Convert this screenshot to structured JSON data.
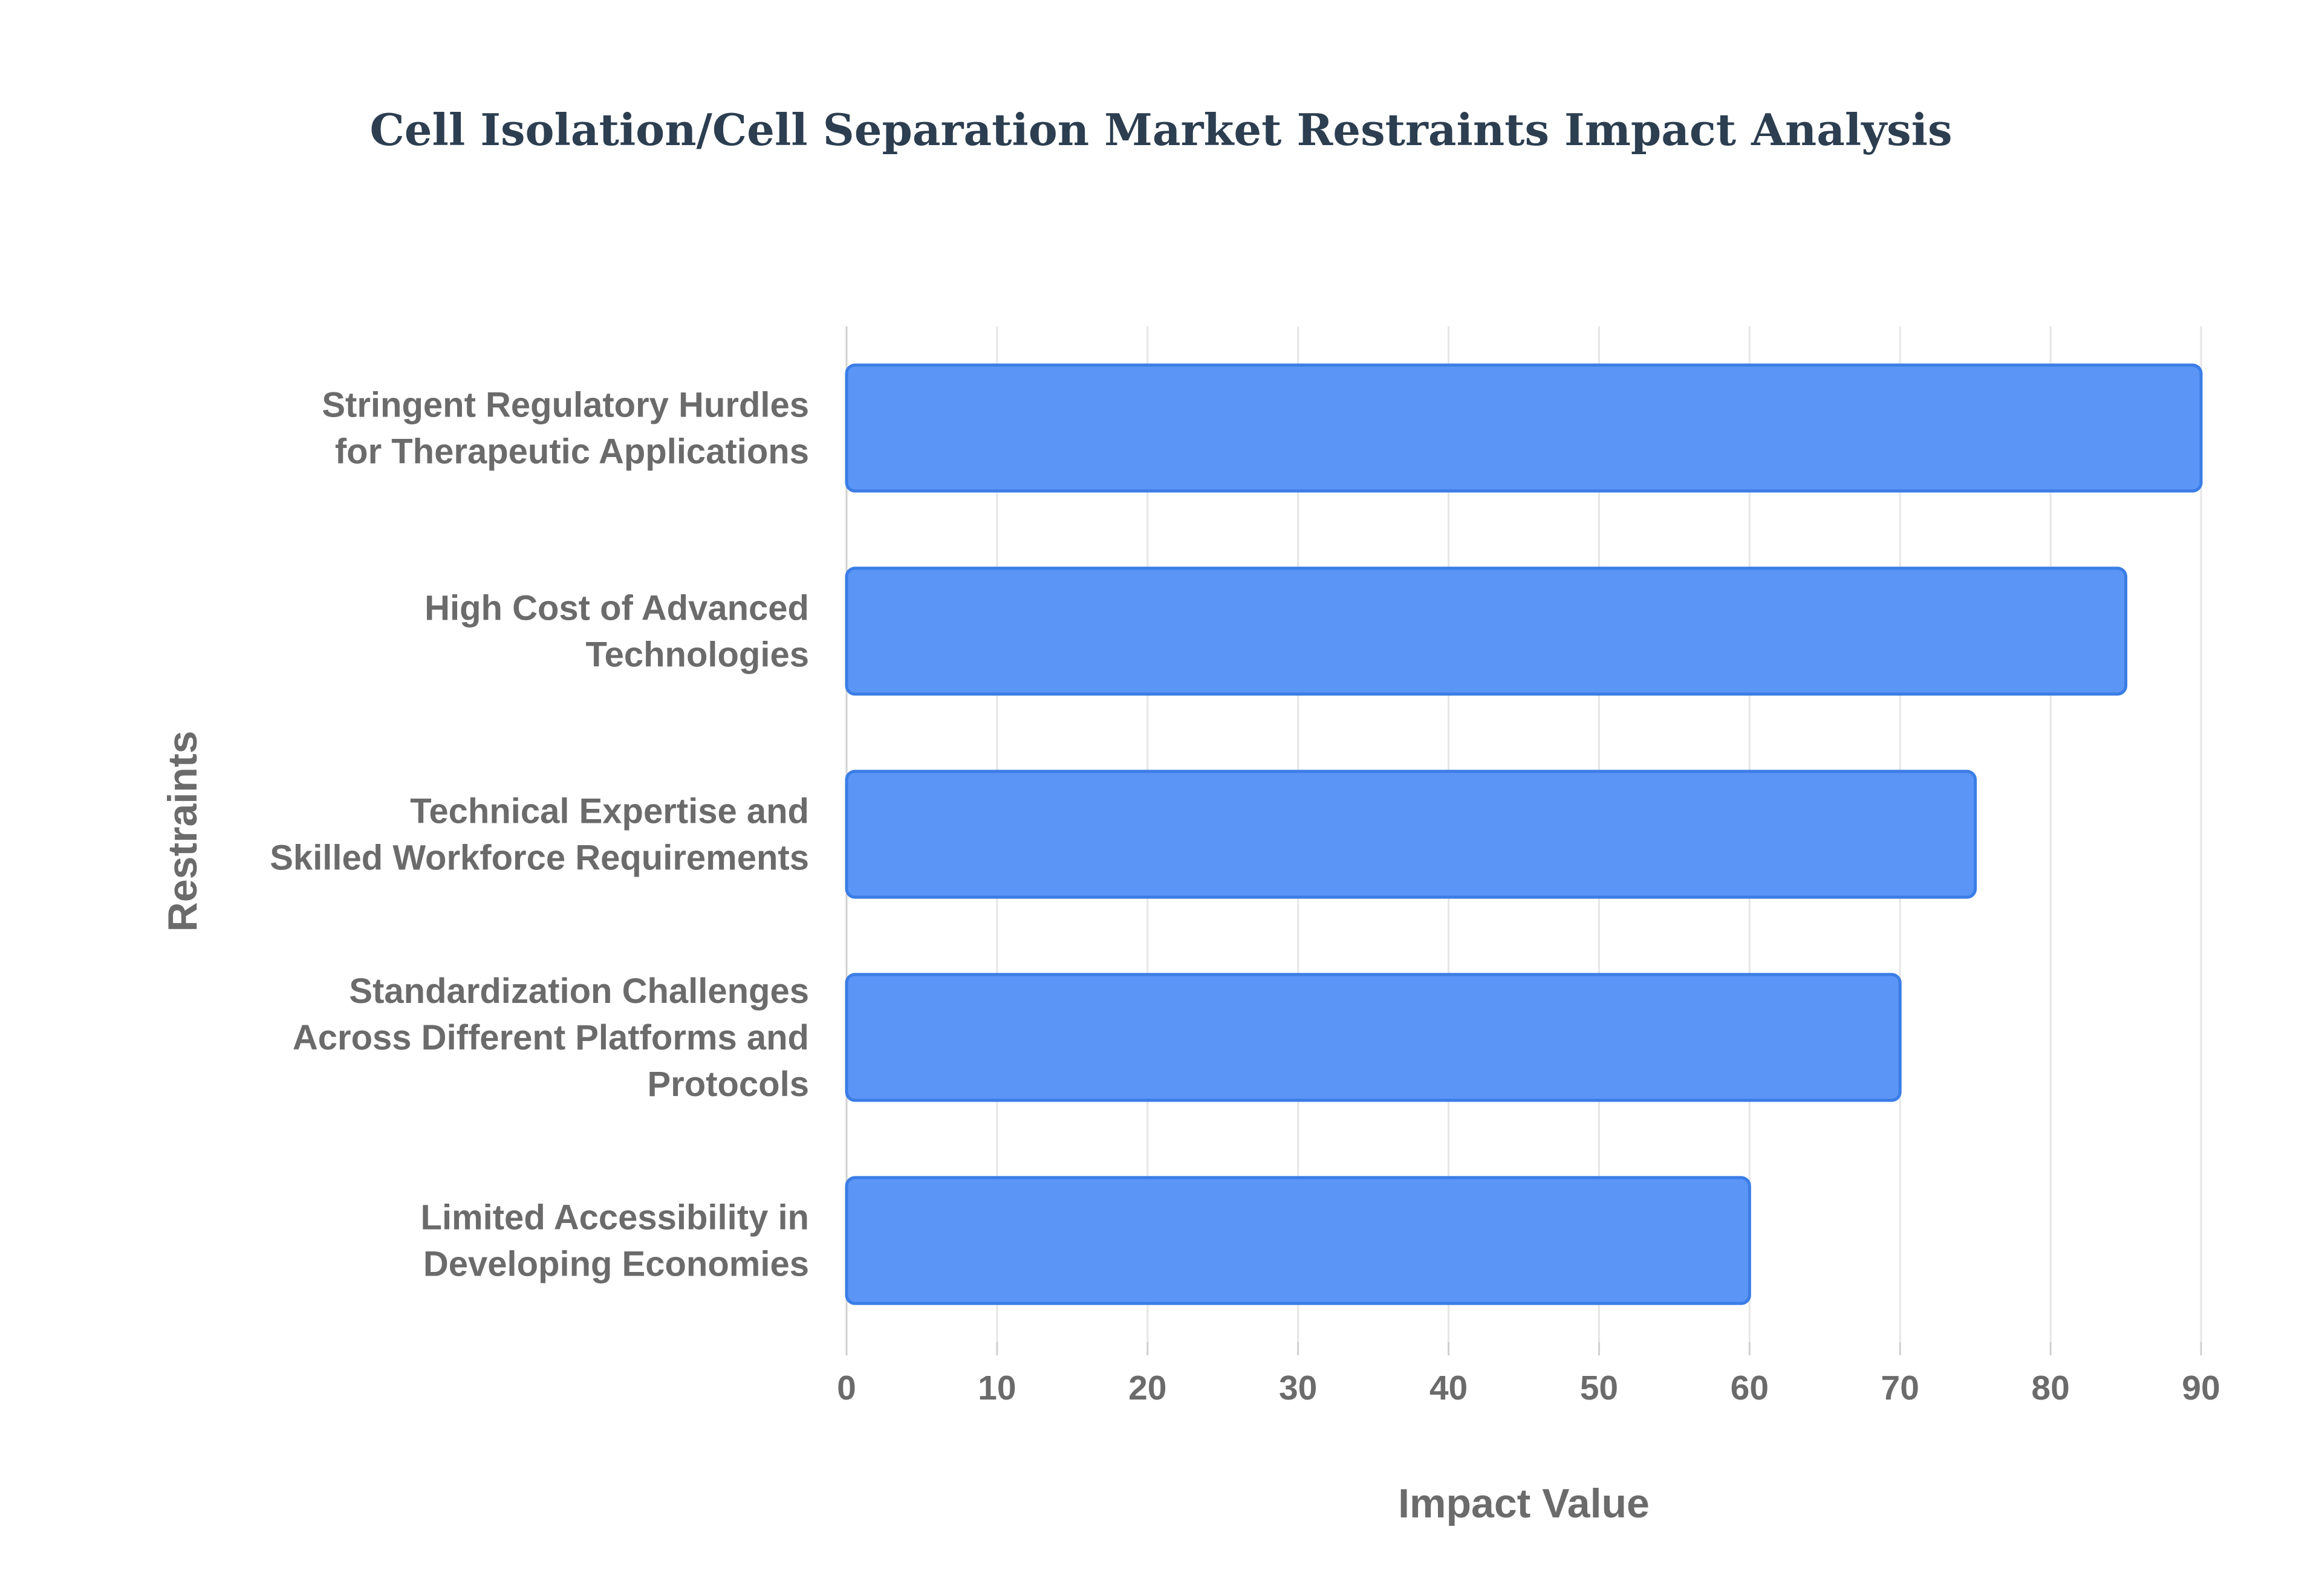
{
  "chart_data": {
    "type": "bar",
    "orientation": "horizontal",
    "title": "Cell Isolation/Cell Separation Market Restraints Impact Analysis",
    "xlabel": "Impact Value",
    "ylabel": "Restraints",
    "categories": [
      [
        "Stringent Regulatory Hurdles",
        "for Therapeutic Applications"
      ],
      [
        "High Cost of Advanced",
        "Technologies"
      ],
      [
        "Technical Expertise and",
        "Skilled Workforce Requirements"
      ],
      [
        "Standardization Challenges",
        "Across Different Platforms and",
        "Protocols"
      ],
      [
        "Limited Accessibility in",
        "Developing Economies"
      ]
    ],
    "values": [
      90,
      85,
      75,
      70,
      60
    ],
    "xlim": [
      0,
      90
    ],
    "xticks": [
      0,
      10,
      20,
      30,
      40,
      50,
      60,
      70,
      80,
      90
    ],
    "grid": true,
    "legend": "none",
    "colors": {
      "bar_fill": "#5b95f5",
      "bar_stroke": "#3b7de6",
      "grid": "#e6e6e6",
      "axis_text": "#6b6b6b",
      "title": "#2c3e50"
    }
  }
}
